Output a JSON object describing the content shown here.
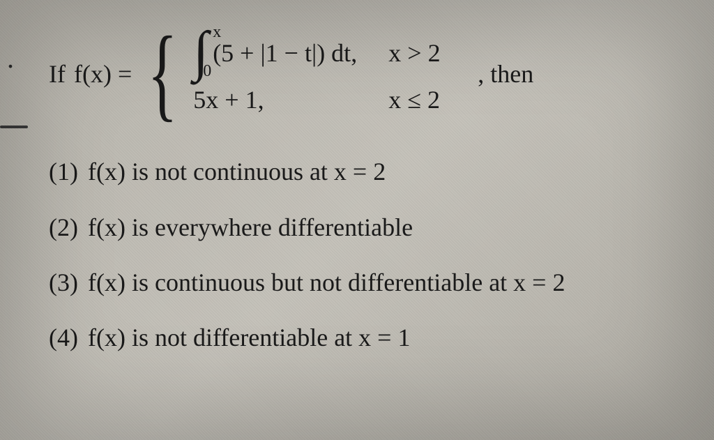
{
  "colors": {
    "background_start": "#b8b5ad",
    "background_mid": "#c5c2ba",
    "background_end": "#b0ada5",
    "text": "#1a1a1a"
  },
  "typography": {
    "body_fontsize_pt": 27,
    "font_family": "Times New Roman"
  },
  "stem": {
    "if_text": "If",
    "fx_eq": "f(x) =",
    "brace": "{",
    "cases": [
      {
        "integral": {
          "symbol": "∫",
          "lower": "0",
          "upper": "x",
          "integrand": "(5 + |1 − t|) dt,"
        },
        "condition": "x > 2"
      },
      {
        "expr": "5x + 1,",
        "condition": "x ≤ 2"
      }
    ],
    "then_text": ", then"
  },
  "options": [
    {
      "num": "(1)",
      "text": "f(x) is not continuous at x = 2"
    },
    {
      "num": "(2)",
      "text": "f(x) is everywhere differentiable"
    },
    {
      "num": "(3)",
      "text": "f(x) is continuous but not differentiable at x = 2"
    },
    {
      "num": "(4)",
      "text": "f(x) is not differentiable at x = 1"
    }
  ]
}
